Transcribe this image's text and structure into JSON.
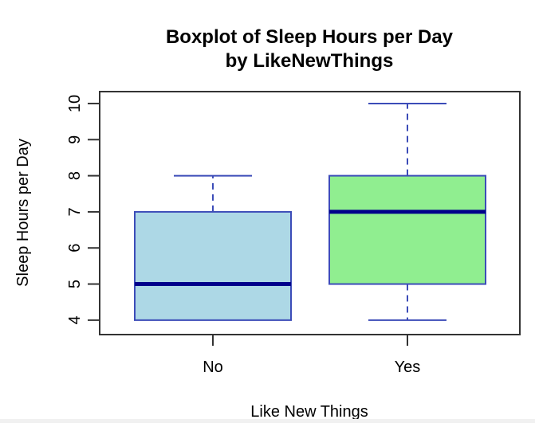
{
  "title": {
    "line1": "Boxplot of Sleep Hours per Day",
    "line2": "by LikeNewThings"
  },
  "y_axis": {
    "label": "Sleep Hours per Day"
  },
  "x_axis": {
    "label": "Like New Things"
  },
  "chart_data": {
    "type": "boxplot",
    "title": "Boxplot of Sleep Hours per Day by LikeNewThings",
    "xlabel": "Like New Things",
    "ylabel": "Sleep Hours per Day",
    "ylim": [
      3.6,
      10.33
    ],
    "y_ticks": [
      4,
      5,
      6,
      7,
      8,
      9,
      10
    ],
    "categories": [
      "No",
      "Yes"
    ],
    "series": [
      {
        "category": "No",
        "whisker_low": 4,
        "q1": 4,
        "median": 5,
        "q3": 7,
        "whisker_high": 8,
        "fill": "#ADD8E6"
      },
      {
        "category": "Yes",
        "whisker_low": 4,
        "q1": 5,
        "median": 7,
        "q3": 8,
        "whisker_high": 10,
        "fill": "#90EE90"
      }
    ],
    "grid": false,
    "legend": "none",
    "colors": {
      "box_border": "#3C4CB8",
      "whisker": "#3C4CB8",
      "median": "#00008B",
      "frame": "#333333",
      "text": "#000000"
    }
  }
}
